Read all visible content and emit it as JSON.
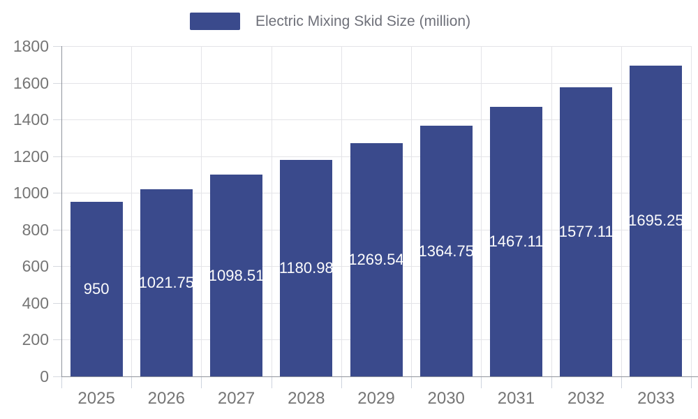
{
  "legend": {
    "label": "Electric Mixing Skid Size (million)",
    "swatch_color": "#3A4A8C",
    "text_color": "#6E7079"
  },
  "chart_data": {
    "type": "bar",
    "title": "Electric Mixing Skid Size (million)",
    "categories": [
      "2025",
      "2026",
      "2027",
      "2028",
      "2029",
      "2030",
      "2031",
      "2032",
      "2033"
    ],
    "values": [
      950,
      1021.75,
      1098.51,
      1180.98,
      1269.54,
      1364.75,
      1467.11,
      1577.11,
      1695.25
    ],
    "bar_labels": [
      "950",
      "1021.75",
      "1098.51",
      "1180.98",
      "1269.54",
      "1364.75",
      "1467.11",
      "1577.11",
      "1695.25"
    ],
    "xlabel": "",
    "ylabel": "",
    "ylim": [
      0,
      1800
    ],
    "y_ticks": [
      0,
      200,
      400,
      600,
      800,
      1000,
      1200,
      1400,
      1600,
      1800
    ],
    "y_tick_labels": [
      "0",
      "200",
      "400",
      "600",
      "800",
      "1000",
      "1200",
      "1400",
      "1600",
      "1800"
    ],
    "grid": true,
    "legend_position": "top-center",
    "bar_color": "#3A4A8C",
    "bar_label_color": "#FCFCFC",
    "axis_text_color": "#757575",
    "grid_color": "#E4E4E8",
    "axis_line_color": "#90949D"
  }
}
